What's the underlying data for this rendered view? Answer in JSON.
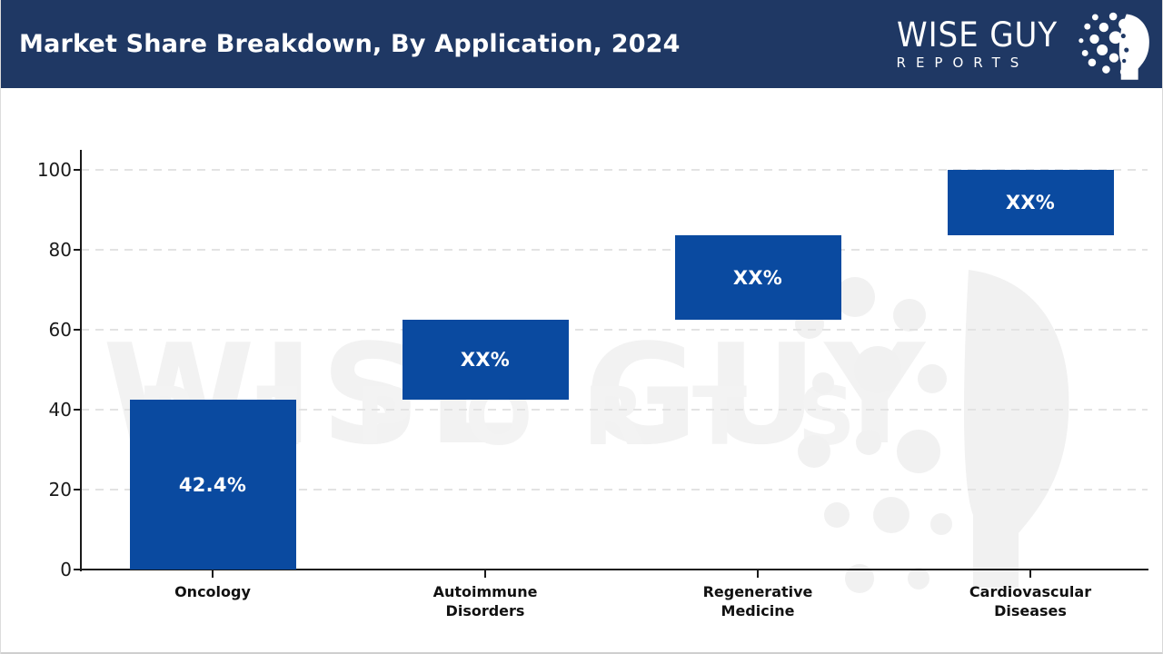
{
  "header": {
    "title": "Market Share Breakdown, By Application, 2024",
    "logo": {
      "line1": "WISE GUY",
      "line2": "REPORTS"
    },
    "bg_color": "#1f3864"
  },
  "watermark": {
    "line1": "WISE GUY",
    "line2": "REPORTS"
  },
  "chart_data": {
    "type": "bar",
    "subtype": "waterfall",
    "title": "Market Share Breakdown, By Application, 2024",
    "categories": [
      "Oncology",
      "Autoimmune Disorders",
      "Regenerative Medicine",
      "Cardiovascular Diseases"
    ],
    "categories_lines": [
      [
        "Oncology"
      ],
      [
        "Autoimmune",
        "Disorders"
      ],
      [
        "Regenerative",
        "Medicine"
      ],
      [
        "Cardiovascular",
        "Diseases"
      ]
    ],
    "segments": [
      {
        "start": 0,
        "end": 42.4,
        "label": "42.4%"
      },
      {
        "start": 42.4,
        "end": 62.5,
        "label": "XX%"
      },
      {
        "start": 62.5,
        "end": 83.6,
        "label": "XX%"
      },
      {
        "start": 83.6,
        "end": 100,
        "label": "XX%"
      }
    ],
    "yticks": [
      0,
      20,
      40,
      60,
      80,
      100
    ],
    "ylim": [
      0,
      100
    ],
    "xlabel": "",
    "ylabel": "",
    "bar_color": "#0a4aa0",
    "grid": "horizontal-dashed",
    "legend": "none"
  }
}
